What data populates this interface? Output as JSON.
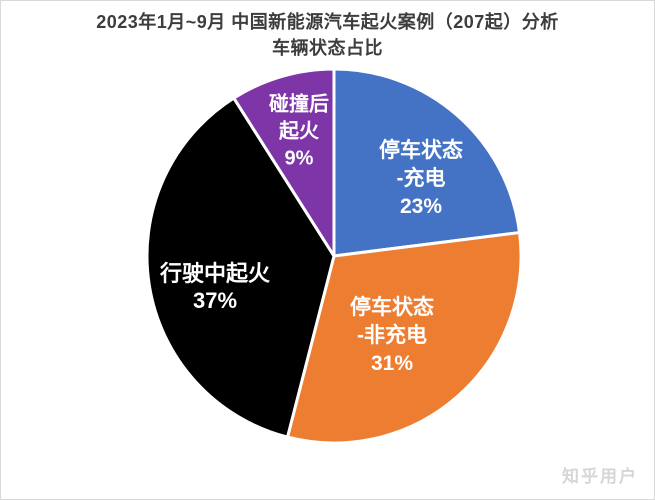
{
  "chart_data": {
    "type": "pie",
    "title": "2023年1月~9月  中国新能源汽车起火案例（207起）分析",
    "subtitle": "车辆状态占比",
    "total_cases": "207",
    "unit": "%",
    "start_angle_deg": 0,
    "direction": "clockwise",
    "slices": [
      {
        "name": "停车状态-充电",
        "value": 23,
        "color": "#4472C4",
        "label_lines": [
          "停车状态",
          "-充电",
          "23%"
        ]
      },
      {
        "name": "停车状态-非充电",
        "value": 31,
        "color": "#ED7D31",
        "label_lines": [
          "停车状态",
          "-非充电",
          "31%"
        ]
      },
      {
        "name": "行驶中起火",
        "value": 37,
        "color": "#000000",
        "label_lines": [
          "行驶中起火",
          "37%"
        ]
      },
      {
        "name": "碰撞后起火",
        "value": 9,
        "color": "#7D35A8",
        "label_lines": [
          "碰撞后",
          "起火",
          "9%"
        ]
      }
    ],
    "label_color": "#ffffff",
    "slice_border_color": "#ffffff"
  },
  "watermark": "知乎用户"
}
